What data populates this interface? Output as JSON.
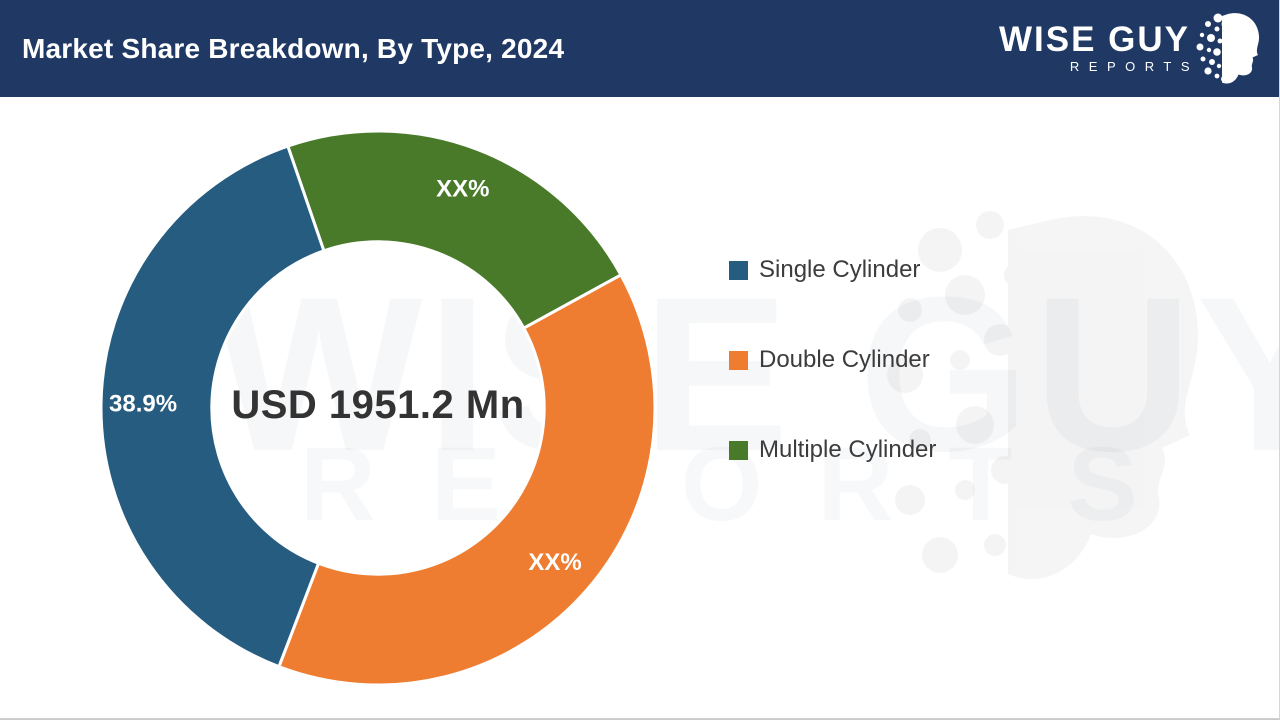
{
  "header": {
    "title": "Market Share Breakdown, By Type, 2024",
    "background_color": "#1F3864"
  },
  "logo": {
    "line1": "WISE GUY",
    "line2": "REPORTS"
  },
  "watermark": {
    "line1": "WISE GUY",
    "line2": "REPORTS"
  },
  "chart_data": {
    "type": "pie",
    "subtype": "donut",
    "title": "Market Share Breakdown, By Type, 2024",
    "center_label": "USD 1951.2 Mn",
    "start_angle_deg": -19,
    "donut_hole_ratio": 0.6,
    "slices": [
      {
        "name": "Multiple Cylinder",
        "value_pct": 22.3,
        "label": "XX%",
        "color": "#497A29"
      },
      {
        "name": "Double Cylinder",
        "value_pct": 38.8,
        "label": "XX%",
        "color": "#EE7D31"
      },
      {
        "name": "Single Cylinder",
        "value_pct": 38.9,
        "label": "38.9%",
        "color": "#255C7F"
      }
    ],
    "legend": [
      {
        "label": "Single Cylinder",
        "color": "#255C7F"
      },
      {
        "label": "Double Cylinder",
        "color": "#EE7D31"
      },
      {
        "label": "Multiple Cylinder",
        "color": "#497A29"
      }
    ],
    "legend_position": "right"
  }
}
